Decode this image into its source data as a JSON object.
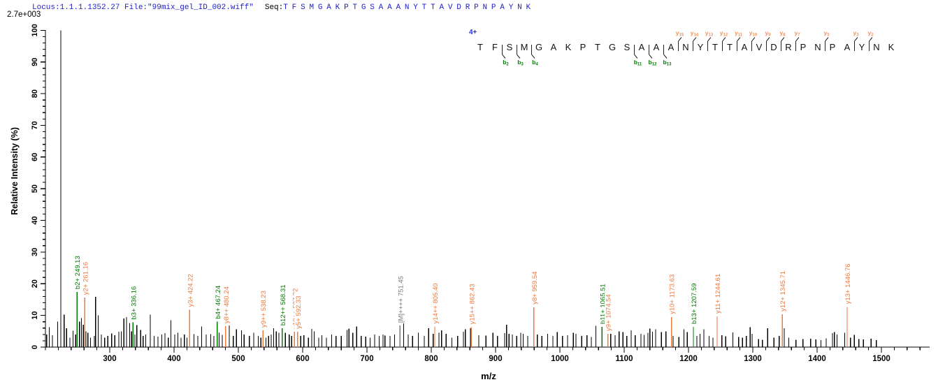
{
  "header": {
    "locus_file": "Locus:1.1.1.1352.27 File:\"99mix_gel_ID_002.wiff\"",
    "seq_label": "Seq:",
    "sequence": "TFSMGAKPTGSAAANYTTAVDRPNPAYNK"
  },
  "scale_note": "2.7e+003",
  "peptide_annotation": {
    "charge_label": "4+",
    "residues": [
      "T",
      "F",
      "S",
      "M",
      "G",
      "A",
      "K",
      "P",
      "T",
      "G",
      "S",
      "A",
      "A",
      "A",
      "N",
      "Y",
      "T",
      "T",
      "A",
      "V",
      "D",
      "R",
      "P",
      "N",
      "P",
      "A",
      "Y",
      "N",
      "K"
    ],
    "y_ions": [
      {
        "label": "y15",
        "before_residue": 15
      },
      {
        "label": "y14",
        "before_residue": 16
      },
      {
        "label": "y13",
        "before_residue": 17
      },
      {
        "label": "y12",
        "before_residue": 18
      },
      {
        "label": "y11",
        "before_residue": 19
      },
      {
        "label": "y10",
        "before_residue": 20
      },
      {
        "label": "y9",
        "before_residue": 21
      },
      {
        "label": "y8",
        "before_residue": 22
      },
      {
        "label": "y7",
        "before_residue": 23
      },
      {
        "label": "y5",
        "before_residue": 25
      },
      {
        "label": "y3",
        "before_residue": 27
      },
      {
        "label": "y2",
        "before_residue": 28
      }
    ],
    "b_ions": [
      {
        "label": "b2",
        "after_residue": 2
      },
      {
        "label": "b3",
        "after_residue": 3
      },
      {
        "label": "b4",
        "after_residue": 4
      },
      {
        "label": "b11",
        "after_residue": 11
      },
      {
        "label": "b12",
        "after_residue": 12
      },
      {
        "label": "b13",
        "after_residue": 13
      }
    ]
  },
  "colors": {
    "header_blue": "#2222CC",
    "charge_blue": "#2233DD",
    "b_ion_green": "#007B00",
    "y_ion_orange": "#ED7A3D",
    "y_seq_label_orange": "#F4925E",
    "precursor_gray": "#7A7A7A",
    "peak_black": "#000000"
  },
  "chart_data": {
    "type": "bar",
    "subtype": "ms2-fragmentation-spectrum",
    "title": "",
    "xlabel": "m/z",
    "ylabel": "Relative  Intensity (%)",
    "y_full_scale_label": "2.7e+003",
    "xlim": [
      200,
      1575
    ],
    "ylim": [
      0,
      100
    ],
    "x_major_ticks": [
      300,
      400,
      500,
      600,
      700,
      800,
      900,
      1000,
      1100,
      1200,
      1300,
      1400,
      1500
    ],
    "x_minor_step": 20,
    "y_major_step": 10,
    "y_minor_step": 2,
    "grid": "off",
    "legend": "none",
    "labeled_peaks": [
      {
        "mz": 249.13,
        "intensity": 17.4,
        "label": "b2+ 249.13",
        "series": "b"
      },
      {
        "mz": 261.16,
        "intensity": 15.6,
        "label": "y2+ 261.16",
        "series": "y"
      },
      {
        "mz": 336.16,
        "intensity": 7.8,
        "label": "b3+ 336.16",
        "series": "b"
      },
      {
        "mz": 424.22,
        "intensity": 11.8,
        "label": "y3+ 424.22",
        "series": "y"
      },
      {
        "mz": 467.24,
        "intensity": 8.0,
        "label": "b4+ 467.24",
        "series": "b"
      },
      {
        "mz": 480.24,
        "intensity": 6.6,
        "label": "y8++ 480.24",
        "series": "y"
      },
      {
        "mz": 538.23,
        "intensity": 5.3,
        "label": "y9++ 538.23",
        "series": "y"
      },
      {
        "mz": 568.31,
        "intensity": 5.9,
        "label": "b12++ 568.31",
        "series": "b"
      },
      {
        "mz": 587.32,
        "intensity": 4.9,
        "label": "y10++ 587.32",
        "series": "y"
      },
      {
        "mz": 592.33,
        "intensity": 4.9,
        "label": "y5+ 592.33",
        "series": "y"
      },
      {
        "mz": 751.45,
        "intensity": 6.8,
        "label": "[M]++++ 751.45",
        "series": "precursor"
      },
      {
        "mz": 805.4,
        "intensity": 6.5,
        "label": "y14++ 805.40",
        "series": "y"
      },
      {
        "mz": 862.43,
        "intensity": 6.3,
        "label": "y15++ 862.43",
        "series": "y"
      },
      {
        "mz": 959.54,
        "intensity": 12.6,
        "label": "y8+ 959.54",
        "series": "y"
      },
      {
        "mz": 1065.51,
        "intensity": 6.4,
        "label": "b11+ 1065.51",
        "series": "b"
      },
      {
        "mz": 1074.54,
        "intensity": 4.2,
        "label": "y9+ 1074.54",
        "series": "y"
      },
      {
        "mz": 1173.63,
        "intensity": 9.5,
        "label": "y10+ 1173.63",
        "series": "y"
      },
      {
        "mz": 1207.59,
        "intensity": 6.4,
        "label": "b13+ 1207.59",
        "series": "b"
      },
      {
        "mz": 1244.61,
        "intensity": 9.7,
        "label": "y11+ 1244.61",
        "series": "y"
      },
      {
        "mz": 1345.71,
        "intensity": 10.4,
        "label": "y12+ 1345.71",
        "series": "y"
      },
      {
        "mz": 1446.76,
        "intensity": 12.7,
        "label": "y13+ 1446.76",
        "series": "y"
      }
    ],
    "peaks": [
      [
        202,
        4
      ],
      [
        206,
        6.3
      ],
      [
        211,
        3.7
      ],
      [
        219,
        8
      ],
      [
        224,
        100
      ],
      [
        229,
        10.3
      ],
      [
        233,
        5.9
      ],
      [
        238,
        3
      ],
      [
        243,
        5.2
      ],
      [
        247,
        4
      ],
      [
        253,
        8
      ],
      [
        256,
        9.2
      ],
      [
        259,
        7
      ],
      [
        263,
        5
      ],
      [
        266,
        4.5
      ],
      [
        270,
        3
      ],
      [
        276,
        3.5
      ],
      [
        278,
        15.9
      ],
      [
        282,
        10
      ],
      [
        287,
        4
      ],
      [
        292,
        3
      ],
      [
        297,
        3.5
      ],
      [
        303,
        4.3
      ],
      [
        308,
        3.7
      ],
      [
        314,
        4.8
      ],
      [
        318,
        5
      ],
      [
        322,
        9
      ],
      [
        326,
        9.5
      ],
      [
        331,
        7.6
      ],
      [
        334,
        5
      ],
      [
        339,
        4
      ],
      [
        342,
        6.9
      ],
      [
        348,
        5.4
      ],
      [
        352,
        3.5
      ],
      [
        356,
        4
      ],
      [
        363,
        10.2
      ],
      [
        369,
        3.5
      ],
      [
        375,
        3.3
      ],
      [
        381,
        4
      ],
      [
        386,
        4.4
      ],
      [
        391,
        3
      ],
      [
        395,
        8.5
      ],
      [
        401,
        4
      ],
      [
        406,
        4.5
      ],
      [
        411,
        3
      ],
      [
        416,
        4
      ],
      [
        420,
        3
      ],
      [
        431,
        4.1
      ],
      [
        437,
        3.5
      ],
      [
        443,
        6.5
      ],
      [
        450,
        4
      ],
      [
        457,
        4.1
      ],
      [
        462,
        3.5
      ],
      [
        470,
        4.5
      ],
      [
        475,
        3.9
      ],
      [
        486,
        6.8
      ],
      [
        492,
        3.5
      ],
      [
        497,
        5.6
      ],
      [
        505,
        5.3
      ],
      [
        509,
        4
      ],
      [
        517,
        3.5
      ],
      [
        524,
        4.5
      ],
      [
        531,
        3.5
      ],
      [
        535,
        3
      ],
      [
        543,
        3
      ],
      [
        547,
        3.5
      ],
      [
        551,
        4
      ],
      [
        555,
        6
      ],
      [
        559,
        5
      ],
      [
        563,
        4.5
      ],
      [
        573,
        4.5
      ],
      [
        579,
        4
      ],
      [
        583,
        3.5
      ],
      [
        597,
        3.5
      ],
      [
        602,
        3.7
      ],
      [
        609,
        3
      ],
      [
        614,
        5.7
      ],
      [
        618,
        5
      ],
      [
        625,
        3
      ],
      [
        630,
        3.7
      ],
      [
        637,
        3
      ],
      [
        645,
        4
      ],
      [
        652,
        3.5
      ],
      [
        660,
        3.5
      ],
      [
        669,
        5.4
      ],
      [
        672,
        5.8
      ],
      [
        678,
        4.5
      ],
      [
        684,
        6.5
      ],
      [
        691,
        3.5
      ],
      [
        698,
        3.3
      ],
      [
        705,
        3
      ],
      [
        712,
        4
      ],
      [
        719,
        3.5
      ],
      [
        725,
        4
      ],
      [
        728,
        3.6
      ],
      [
        736,
        3.5
      ],
      [
        743,
        4
      ],
      [
        757,
        9.6
      ],
      [
        764,
        4
      ],
      [
        771,
        3.5
      ],
      [
        780,
        4.5
      ],
      [
        789,
        3.5
      ],
      [
        796,
        6
      ],
      [
        803,
        4.2
      ],
      [
        812,
        4.5
      ],
      [
        816,
        5.3
      ],
      [
        823,
        4.2
      ],
      [
        832,
        3
      ],
      [
        841,
        3.5
      ],
      [
        850,
        4.9
      ],
      [
        853,
        5.6
      ],
      [
        861,
        6
      ],
      [
        874,
        3.8
      ],
      [
        885,
        3.6
      ],
      [
        896,
        4.5
      ],
      [
        903,
        3.5
      ],
      [
        914,
        4.4
      ],
      [
        917,
        7
      ],
      [
        921,
        4.2
      ],
      [
        926,
        4
      ],
      [
        933,
        3.5
      ],
      [
        939,
        4.5
      ],
      [
        943,
        4.2
      ],
      [
        950,
        3.5
      ],
      [
        965,
        4
      ],
      [
        972,
        3.5
      ],
      [
        981,
        4.2
      ],
      [
        989,
        3.5
      ],
      [
        996,
        4.7
      ],
      [
        1004,
        3.5
      ],
      [
        1012,
        3.8
      ],
      [
        1021,
        4.5
      ],
      [
        1025,
        4.2
      ],
      [
        1034,
        3.5
      ],
      [
        1042,
        3.8
      ],
      [
        1049,
        3.2
      ],
      [
        1056,
        6.7
      ],
      [
        1079,
        4.2
      ],
      [
        1086,
        3.8
      ],
      [
        1092,
        5
      ],
      [
        1098,
        4.7
      ],
      [
        1104,
        3.5
      ],
      [
        1111,
        5.3
      ],
      [
        1117,
        3.8
      ],
      [
        1126,
        4.2
      ],
      [
        1131,
        3.9
      ],
      [
        1137,
        4.5
      ],
      [
        1140,
        5.8
      ],
      [
        1144,
        4.8
      ],
      [
        1149,
        5.6
      ],
      [
        1158,
        4.7
      ],
      [
        1165,
        5
      ],
      [
        1176,
        3.5
      ],
      [
        1185,
        3.2
      ],
      [
        1193,
        5.6
      ],
      [
        1198,
        4.7
      ],
      [
        1213,
        3.5
      ],
      [
        1218,
        4.2
      ],
      [
        1224,
        5.6
      ],
      [
        1232,
        3.5
      ],
      [
        1238,
        3
      ],
      [
        1252,
        3.8
      ],
      [
        1258,
        3.4
      ],
      [
        1269,
        4.6
      ],
      [
        1278,
        3.2
      ],
      [
        1284,
        3
      ],
      [
        1290,
        3.5
      ],
      [
        1296,
        6.3
      ],
      [
        1299,
        4.2
      ],
      [
        1309,
        2.5
      ],
      [
        1315,
        2.3
      ],
      [
        1323,
        6
      ],
      [
        1333,
        3
      ],
      [
        1341,
        3.5
      ],
      [
        1349,
        6
      ],
      [
        1356,
        3
      ],
      [
        1367,
        2.3
      ],
      [
        1378,
        2.5
      ],
      [
        1390,
        2.6
      ],
      [
        1398,
        2.4
      ],
      [
        1406,
        2.2
      ],
      [
        1414,
        2.8
      ],
      [
        1424,
        4.4
      ],
      [
        1427,
        4.7
      ],
      [
        1431,
        4
      ],
      [
        1443,
        4.5
      ],
      [
        1452,
        3
      ],
      [
        1458,
        3.9
      ],
      [
        1465,
        2.5
      ],
      [
        1472,
        2.4
      ],
      [
        1484,
        2.6
      ],
      [
        1492,
        2.2
      ]
    ]
  }
}
